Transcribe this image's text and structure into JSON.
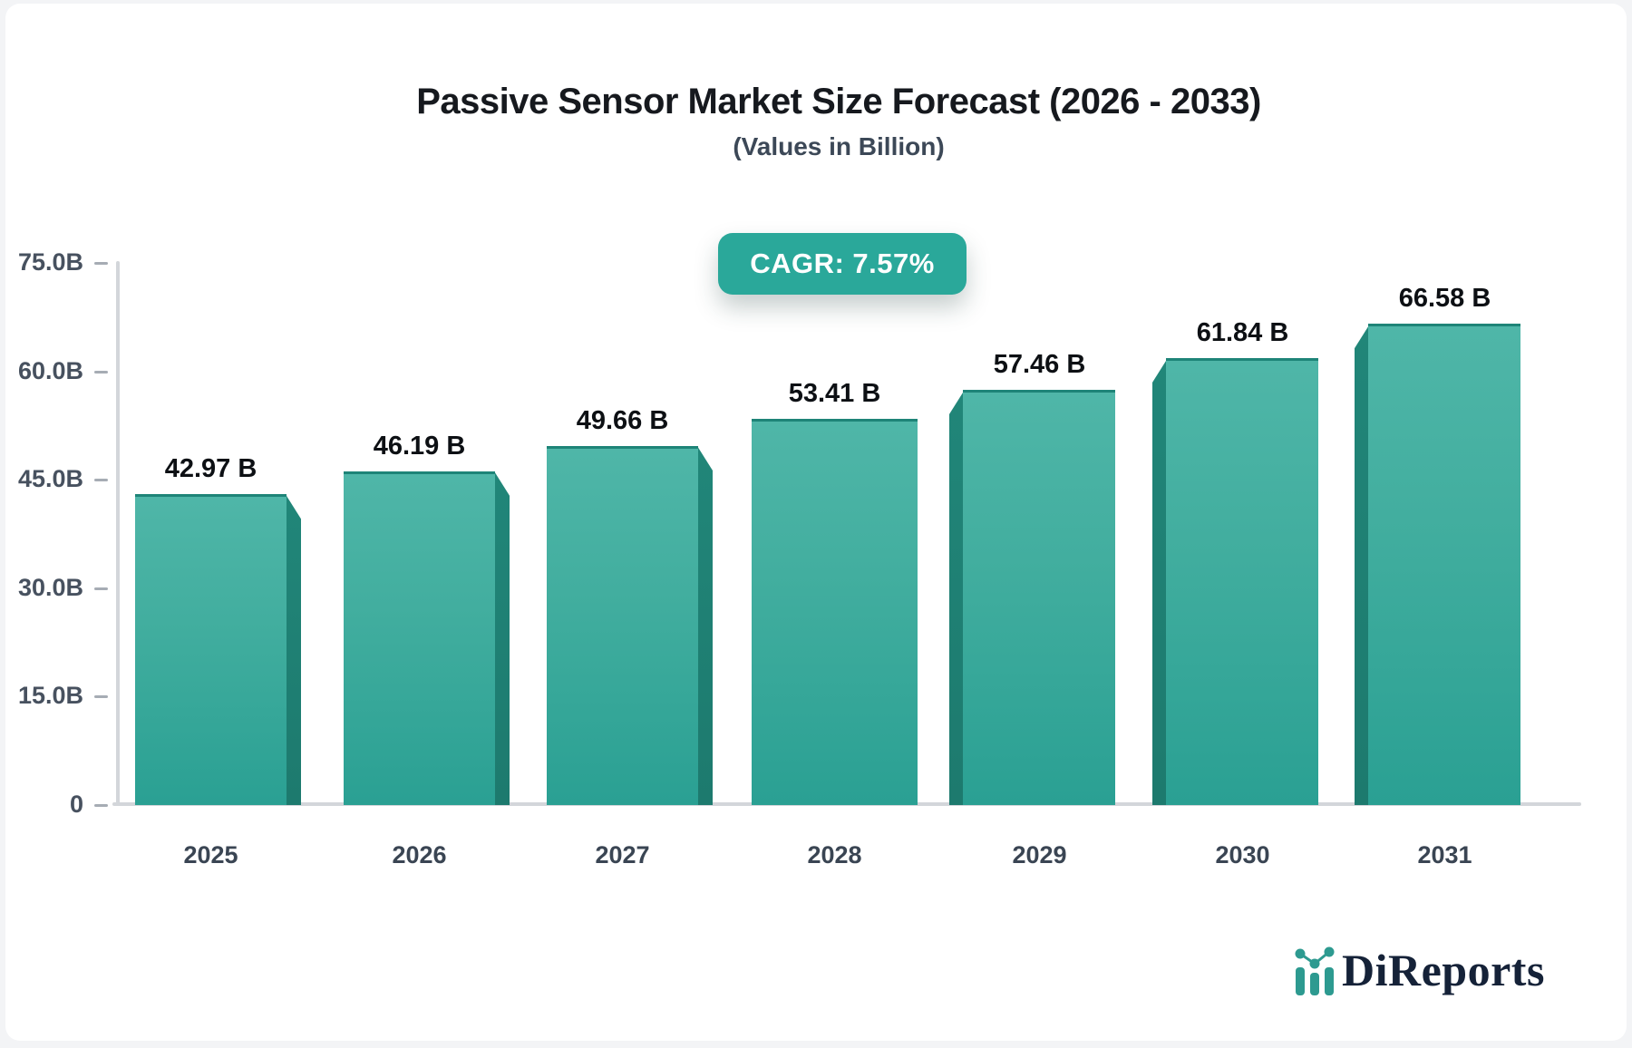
{
  "chart_data": {
    "type": "bar",
    "title": "Passive Sensor Market Size Forecast (2026 - 2033)",
    "subtitle": "(Values in Billion)",
    "badge": "CAGR: 7.57%",
    "categories": [
      "2025",
      "2026",
      "2027",
      "2028",
      "2029",
      "2030",
      "2031"
    ],
    "values": [
      42.97,
      46.19,
      49.66,
      53.41,
      57.46,
      61.84,
      66.58
    ],
    "value_labels": [
      "42.97 B",
      "46.19 B",
      "49.66 B",
      "53.41 B",
      "57.46 B",
      "61.84 B",
      "66.58 B"
    ],
    "xlabel": "",
    "ylabel": "",
    "ylim": [
      0,
      75
    ],
    "yticks": [
      {
        "value": 75,
        "label": "75.0B"
      },
      {
        "value": 60,
        "label": "60.0B"
      },
      {
        "value": 45,
        "label": "45.0B"
      },
      {
        "value": 30,
        "label": "30.0B"
      },
      {
        "value": 15,
        "label": "15.0B"
      },
      {
        "value": 0,
        "label": "0"
      }
    ],
    "grid": false,
    "legend": false,
    "bar_style": "3d-beveled, bevel faces toward center bar",
    "colors": {
      "bar_face_top": "#4fb6a8",
      "bar_face_bottom": "#2aa093",
      "bar_side": "#1f8074",
      "axis": "#d3d6da",
      "tick_mark": "#a6acb4",
      "tick_label": "#47515f",
      "category_label": "#3a4553",
      "badge_bg": "#2aa89a",
      "badge_text": "#ffffff",
      "value_label": "#0d1014"
    }
  },
  "branding": {
    "name": "DiReports",
    "icon": "mini-bar-line-chart-logo-icon",
    "text_color": "#152238",
    "accent": "#2d9a90"
  }
}
